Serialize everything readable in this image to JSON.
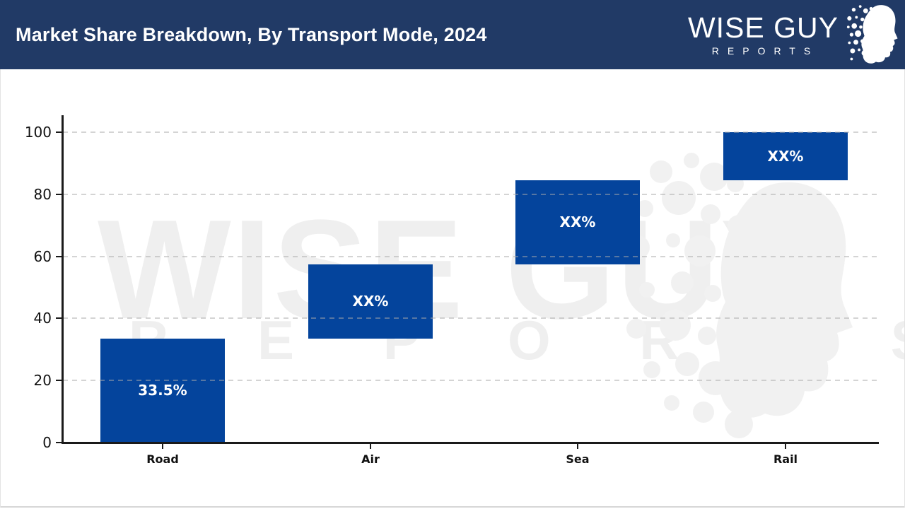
{
  "header": {
    "title": "Market Share Breakdown, By Transport Mode, 2024",
    "logo": {
      "line1": "WISE GUY",
      "line2": "REPORTS",
      "icon": "dotted-face-profile"
    }
  },
  "watermark": {
    "line1": "WISE GUY",
    "line2": "R E P O R T S"
  },
  "chart_data": {
    "type": "bar",
    "subtype": "waterfall-floating-bars",
    "title": "Market Share Breakdown, By Transport Mode, 2024",
    "categories": [
      "Road",
      "Air",
      "Sea",
      "Rail"
    ],
    "segments": [
      {
        "category": "Road",
        "start": 0,
        "end": 33.5,
        "label": "33.5%"
      },
      {
        "category": "Air",
        "start": 33.5,
        "end": 57.5,
        "label": "XX%"
      },
      {
        "category": "Sea",
        "start": 57.5,
        "end": 84.5,
        "label": "XX%"
      },
      {
        "category": "Rail",
        "start": 84.5,
        "end": 100,
        "label": "XX%"
      }
    ],
    "xlabel": "",
    "ylabel": "",
    "ylim": [
      0,
      100
    ],
    "yticks": [
      0,
      20,
      40,
      60,
      80,
      100
    ],
    "grid": "horizontal-dashed",
    "legend": "none",
    "colors": {
      "bar": "#04449C",
      "bar_label": "#FFFFFF",
      "axis": "#1A1A1A",
      "tick_label": "#111111"
    }
  },
  "theme": {
    "header_bg": "#213A66",
    "header_text": "#FFFFFF",
    "page_bg": "#FFFFFF",
    "watermark_color": "#EFEFEF"
  }
}
